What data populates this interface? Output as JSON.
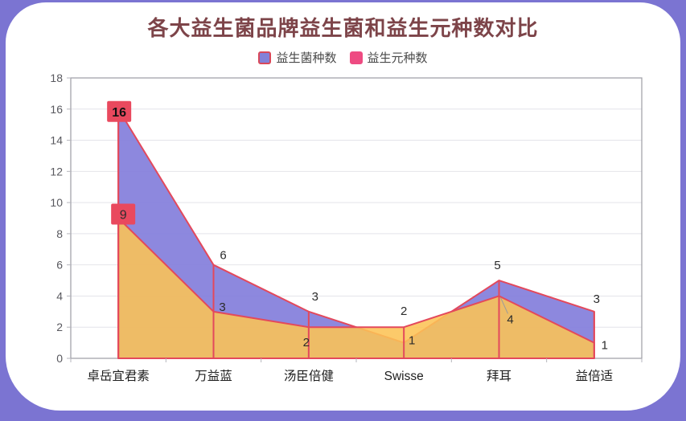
{
  "window": {
    "frame_color": "#7b74d2",
    "card_color": "#ffffff"
  },
  "title": {
    "text": "各大益生菌品牌益生菌和益生元种数对比",
    "color": "#7d4449"
  },
  "legend": {
    "items": [
      {
        "label": "益生菌种数",
        "fill": "#8381d8",
        "border": "#d9485a"
      },
      {
        "label": "益生元种数",
        "fill": "#ee4b82",
        "border": "#ee4b82"
      }
    ],
    "text_color": "#4a4a4a"
  },
  "chart_data": {
    "type": "area",
    "title": "各大益生菌品牌益生菌和益生元种数对比",
    "categories": [
      "卓岳宜君素",
      "万益蓝",
      "汤臣倍健",
      "Swisse",
      "拜耳",
      "益倍适"
    ],
    "series": [
      {
        "name": "益生菌种数",
        "values": [
          16,
          6,
          3,
          1,
          5,
          3
        ],
        "labels": [
          "16",
          "6",
          "3",
          "1",
          "5",
          "3"
        ],
        "area_color": "#837edb",
        "line_color": "#e3495c"
      },
      {
        "name": "益生元种数",
        "values": [
          9,
          3,
          2,
          2,
          4,
          1
        ],
        "labels": [
          "9",
          "3",
          "2",
          "2",
          "4",
          "1"
        ],
        "area_color": "#fcc355",
        "line_color": "#e3495c"
      }
    ],
    "xlabel": "",
    "ylabel": "",
    "ylim": [
      0,
      18
    ],
    "ytick_interval": 2,
    "yticks": [
      "0",
      "2",
      "4",
      "6",
      "8",
      "10",
      "12",
      "14",
      "16",
      "18"
    ],
    "grid": true,
    "legend_position": "top-center",
    "highlight_boxes": {
      "category": "卓岳宜君素",
      "values": [
        "16",
        "9"
      ],
      "box_color": "#e9495e"
    }
  },
  "axes": {
    "grid_color": "#e4e4ea",
    "border_color": "#a3a3aa",
    "tick_color": "#b5b5bc",
    "y_label_color": "#58585e",
    "x_label_color": "#1e1e1e",
    "point_label_color": "#2b2b2b"
  }
}
